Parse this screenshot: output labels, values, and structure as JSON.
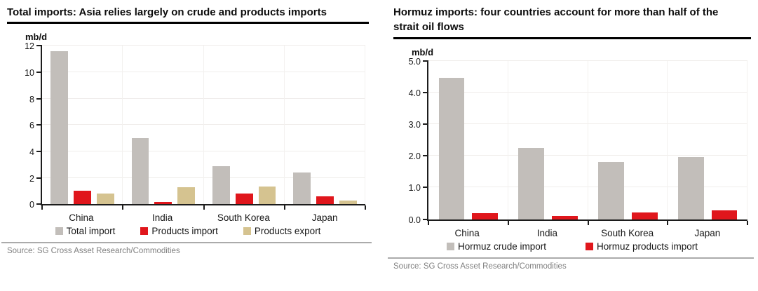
{
  "chart_data": [
    {
      "type": "bar",
      "title": "Total imports: Asia relies largely on crude and products imports",
      "ylabel": "mb/d",
      "categories": [
        "China",
        "India",
        "South Korea",
        "Japan"
      ],
      "series": [
        {
          "name": "Total import",
          "color": "#c2beba",
          "values": [
            11.6,
            5.0,
            2.9,
            2.4
          ]
        },
        {
          "name": "Products import",
          "color": "#e0161c",
          "values": [
            1.0,
            0.2,
            0.8,
            0.6
          ]
        },
        {
          "name": "Products export",
          "color": "#d5c390",
          "values": [
            0.8,
            1.3,
            1.35,
            0.3
          ]
        }
      ],
      "ylim": [
        0,
        12
      ],
      "ytick_step": 2,
      "ytick_decimals": 0,
      "grid": true,
      "legend_position": "bottom",
      "source": "Source: SG Cross Asset Research/Commodities"
    },
    {
      "type": "bar",
      "title": "Hormuz imports: four countries account for more than half of the strait oil flows",
      "ylabel": "mb/d",
      "categories": [
        "China",
        "India",
        "South Korea",
        "Japan"
      ],
      "series": [
        {
          "name": "Hormuz crude import",
          "color": "#c2beba",
          "values": [
            4.45,
            2.25,
            1.8,
            1.95
          ]
        },
        {
          "name": "Hormuz products import",
          "color": "#e0161c",
          "values": [
            0.2,
            0.1,
            0.22,
            0.27
          ]
        }
      ],
      "ylim": [
        0,
        5
      ],
      "ytick_step": 1,
      "ytick_decimals": 1,
      "grid": true,
      "legend_position": "bottom",
      "source": "Source: SG Cross Asset Research/Commodities"
    }
  ]
}
